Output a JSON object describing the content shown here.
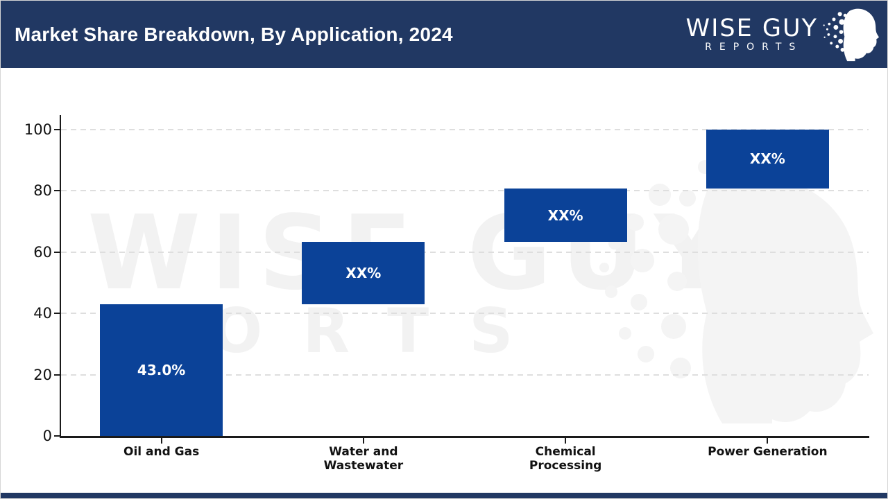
{
  "header": {
    "title": "Market Share Breakdown, By Application, 2024",
    "logo": {
      "line1": "WISE GUY",
      "line2": "REPORTS"
    }
  },
  "watermark": {
    "line1": "WISE GUY",
    "line2": "PORTS"
  },
  "colors": {
    "header_bg": "#213863",
    "bar": "#0b4298",
    "grid": "#dedede",
    "axis": "#1a1a1a",
    "bar_label": "#ffffff",
    "watermark": "#f2f2f2"
  },
  "chart_data": {
    "type": "bar",
    "subtype": "waterfall-floating-bars",
    "title": "Market Share Breakdown, By Application, 2024",
    "categories": [
      "Oil and Gas",
      "Water and\nWastewater",
      "Chemical\nProcessing",
      "Power Generation"
    ],
    "bars": [
      {
        "category": "Oil and Gas",
        "start": 0,
        "end": 43.0,
        "label": "43.0%"
      },
      {
        "category": "Water and Wastewater",
        "start": 43.0,
        "end": 63.3,
        "label": "XX%"
      },
      {
        "category": "Chemical Processing",
        "start": 63.3,
        "end": 80.8,
        "label": "XX%"
      },
      {
        "category": "Power Generation",
        "start": 80.8,
        "end": 100.0,
        "label": "XX%"
      }
    ],
    "xlabel": "",
    "ylabel": "",
    "ylim": [
      0,
      100
    ],
    "yticks": [
      0,
      20,
      40,
      60,
      80,
      100
    ],
    "grid": "horizontal-dashed",
    "legend": "none"
  }
}
